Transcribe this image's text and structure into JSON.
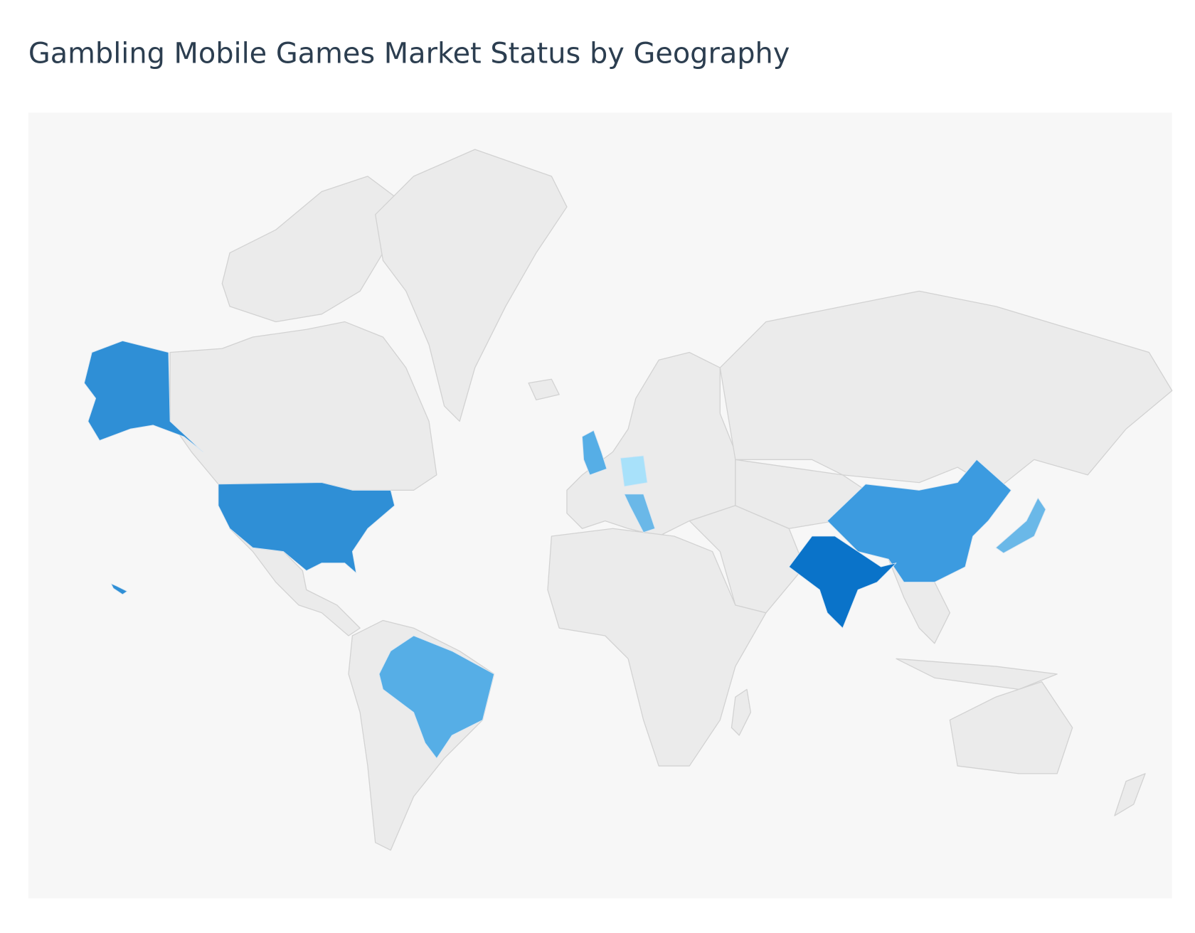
{
  "title": "Gambling Mobile Games Market Status by Geography"
}
